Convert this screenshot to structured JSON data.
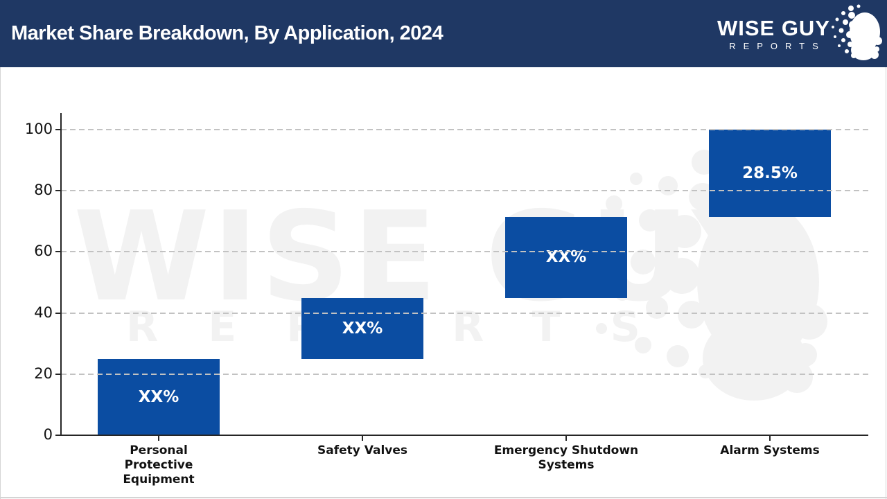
{
  "header": {
    "title": "Market Share Breakdown, By Application, 2024"
  },
  "logo": {
    "primary": "WISE GUY",
    "secondary": "REPORTS"
  },
  "watermark": {
    "primary": "WISE GUY",
    "secondary": "REPORTS"
  },
  "chart_data": {
    "type": "bar",
    "subtype": "waterfall",
    "title": "Market Share Breakdown, By Application, 2024",
    "categories": [
      "Personal Protective Equipment",
      "Safety Valves",
      "Emergency Shutdown Systems",
      "Alarm Systems"
    ],
    "category_label_lines": [
      [
        "Personal",
        "Protective",
        "Equipment"
      ],
      [
        "Safety Valves"
      ],
      [
        "Emergency Shutdown",
        "Systems"
      ],
      [
        "Alarm Systems"
      ]
    ],
    "bars": [
      {
        "category": "Personal Protective Equipment",
        "start": 0,
        "end": 25,
        "label": "XX%"
      },
      {
        "category": "Safety Valves",
        "start": 25,
        "end": 45,
        "label": "XX%"
      },
      {
        "category": "Emergency Shutdown Systems",
        "start": 45,
        "end": 71.5,
        "label": "XX%"
      },
      {
        "category": "Alarm Systems",
        "start": 71.5,
        "end": 100,
        "label": "28.5%"
      }
    ],
    "xlabel": "",
    "ylabel": "",
    "ylim": [
      0,
      100
    ],
    "yticks": [
      0,
      20,
      40,
      60,
      80,
      100
    ],
    "grid": {
      "horizontal": true,
      "style": "dashed"
    },
    "legend": null,
    "colors": {
      "bar": "#0b4da2",
      "bar_label": "#ffffff",
      "axis": "#262626",
      "gridline": "#c2c2c2",
      "header_bg": "#1f3864",
      "header_text": "#ffffff",
      "watermark": "#f2f2f2"
    }
  }
}
